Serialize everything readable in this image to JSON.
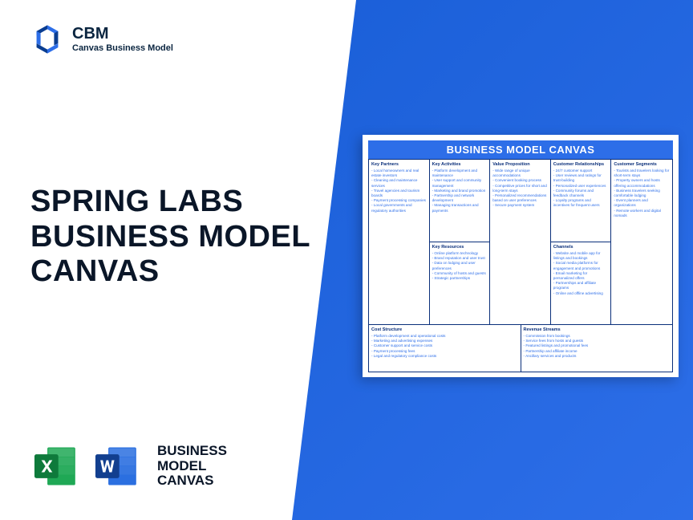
{
  "brand": {
    "abbr": "CBM",
    "name": "Canvas Business Model",
    "logo_colors": {
      "dark": "#0a3d91",
      "light": "#2d6ee8"
    }
  },
  "main_title": {
    "line1": "SPRING LABS",
    "line2": "BUSINESS MODEL",
    "line3": "CANVAS"
  },
  "footer": {
    "label_line1": "BUSINESS",
    "label_line2": "MODEL",
    "label_line3": "CANVAS",
    "excel_colors": {
      "dark": "#0e7a3b",
      "light": "#1fa855",
      "white": "#ffffff"
    },
    "word_colors": {
      "dark": "#123f8f",
      "light": "#2b6fe0",
      "white": "#ffffff"
    }
  },
  "canvas": {
    "title": "BUSINESS MODEL CANVAS",
    "colors": {
      "header_bg": "#2d6ee8",
      "header_text": "#ffffff",
      "border": "#0a2f7a",
      "label": "#0a2f7a",
      "body": "#2d6ee8"
    },
    "blocks": {
      "key_partners": {
        "title": "Key Partners",
        "items": [
          "Local homeowners and real estate investors",
          "Cleaning and maintenance services",
          "Travel agencies and tourism boards",
          "Payment processing companies",
          "Local governments and regulatory authorities"
        ]
      },
      "key_activities": {
        "title": "Key Activities",
        "items": [
          "Platform development and maintenance",
          "User support and community management",
          "Marketing and brand promotion",
          "Partnership and network development",
          "Managing transactions and payments"
        ]
      },
      "key_resources": {
        "title": "Key Resources",
        "items": [
          "Online platform technology",
          "Brand reputation and user trust",
          "Data on lodging and user preferences",
          "Community of hosts and guests",
          "Strategic partnerships"
        ]
      },
      "value_proposition": {
        "title": "Value Proposition",
        "items": [
          "Wide range of unique accommodations",
          "Convenient booking process",
          "Competitive prices for short and long-term stays",
          "Personalized recommendations based on user preferences",
          "Secure payment system"
        ]
      },
      "customer_relationships": {
        "title": "Customer Relationships",
        "items": [
          "24/7 customer support",
          "User reviews and ratings for trust-building",
          "Personalized user experiences",
          "Community forums and feedback channels",
          "Loyalty programs and incentives for frequent users"
        ]
      },
      "channels": {
        "title": "Channels",
        "items": [
          "Website and mobile app for listings and bookings",
          "Social media platforms for engagement and promotions",
          "Email marketing for personalized offers",
          "Partnerships and affiliate programs",
          "Online and offline advertising"
        ]
      },
      "customer_segments": {
        "title": "Customer Segments",
        "items": [
          "Tourists and travelers looking for short-term stays",
          "Property owners and hosts offering accommodations",
          "Business travelers seeking comfortable lodging",
          "Event planners and organizations",
          "Remote workers and digital nomads"
        ]
      },
      "cost_structure": {
        "title": "Cost Structure",
        "items": [
          "Platform development and operational costs",
          "Marketing and advertising expenses",
          "Customer support and service costs",
          "Payment processing fees",
          "Legal and regulatory compliance costs"
        ]
      },
      "revenue_streams": {
        "title": "Revenue Streams",
        "items": [
          "Commission from bookings",
          "Service fees from hosts and guests",
          "Featured listings and promotional fees",
          "Partnership and affiliate income",
          "Ancillary services and products"
        ]
      }
    }
  },
  "layout": {
    "page_bg": "#ffffff",
    "diagonal_bg_start": "#1a5fd8",
    "diagonal_bg_end": "#2d6ee8"
  }
}
